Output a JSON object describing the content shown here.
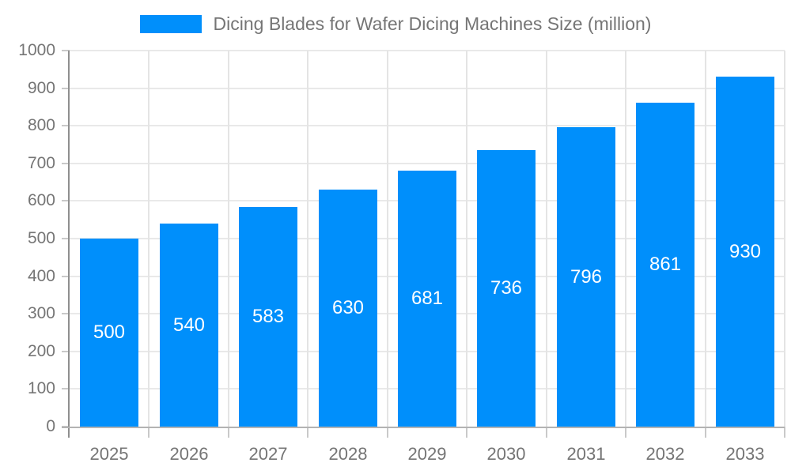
{
  "chart_data": {
    "type": "bar",
    "title": "Dicing Blades for Wafer Dicing Machines Size (million)",
    "series_name": "Dicing Blades for Wafer Dicing Machines Size (million)",
    "categories": [
      "2025",
      "2026",
      "2027",
      "2028",
      "2029",
      "2030",
      "2031",
      "2032",
      "2033"
    ],
    "values": [
      500,
      540,
      583,
      630,
      681,
      736,
      796,
      861,
      930
    ],
    "xlabel": "",
    "ylabel": "",
    "ylim": [
      0,
      1000
    ],
    "yticks": [
      0,
      100,
      200,
      300,
      400,
      500,
      600,
      700,
      800,
      900,
      1000
    ],
    "grid": true,
    "legend_position": "top",
    "value_labels_position": "inside-center",
    "colors": {
      "bar": "#008FFB",
      "value_label": "#FFFFFF",
      "axis_label": "#757575",
      "legend_label": "#757575",
      "h_gridline": "#E9E9E9",
      "v_gridline": "#E4E4E4",
      "tick": "#C9C9C9",
      "y_axis_line": "#8F8F8F",
      "x_axis_line": "#B3B3B3",
      "background": "#FFFFFF"
    }
  }
}
